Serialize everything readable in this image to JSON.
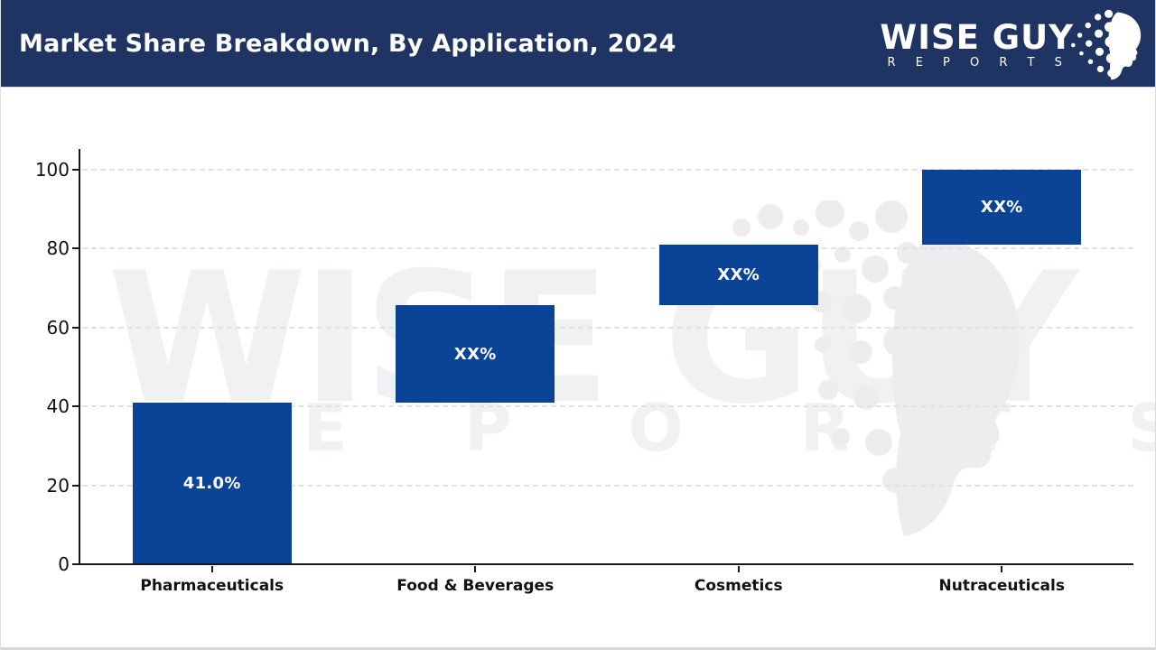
{
  "header": {
    "title": "Market Share Breakdown, By Application, 2024",
    "logo": {
      "line1": "WISE GUY",
      "line2": "R E P O R T S"
    }
  },
  "watermark": {
    "line1": "WISE GUY",
    "line2": "R E P O R T S"
  },
  "colors": {
    "header_bg": "#1f3463",
    "bar": "#0b4397",
    "bar_label": "#ffffff",
    "grid": "#e2e2e2",
    "axis": "#1a1a1a",
    "watermark": "#f0f1f3"
  },
  "chart_data": {
    "type": "bar",
    "subtype": "waterfall",
    "title": "Market Share Breakdown, By Application, 2024",
    "categories": [
      "Pharmaceuticals",
      "Food & Beverages",
      "Cosmetics",
      "Nutraceuticals"
    ],
    "segments": [
      {
        "category": "Pharmaceuticals",
        "start": 0,
        "end": 41,
        "label": "41.0%"
      },
      {
        "category": "Food & Beverages",
        "start": 41,
        "end": 65.5,
        "label": "XX%"
      },
      {
        "category": "Cosmetics",
        "start": 65.5,
        "end": 81,
        "label": "XX%"
      },
      {
        "category": "Nutraceuticals",
        "start": 81,
        "end": 100,
        "label": "XX%"
      }
    ],
    "yticks": [
      0,
      20,
      40,
      60,
      80,
      100
    ],
    "ylim": [
      0,
      105
    ],
    "xlabel": "",
    "ylabel": "",
    "grid": "horizontal-dashed",
    "legend": "none",
    "bar_color": "#0b4397"
  }
}
